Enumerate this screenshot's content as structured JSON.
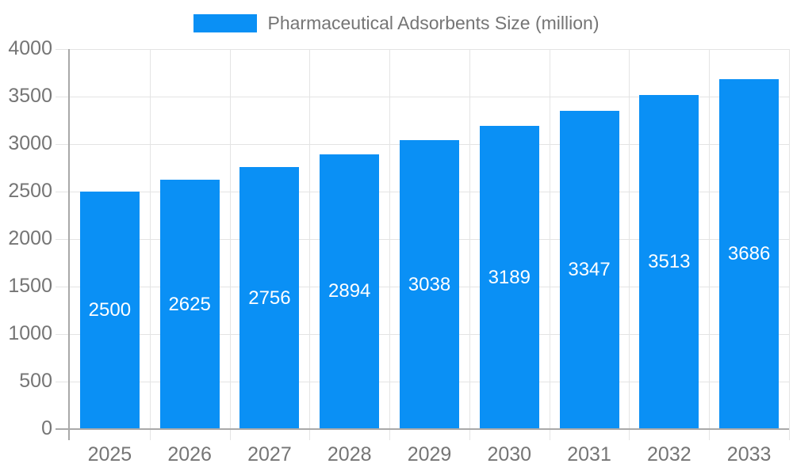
{
  "chart_data": {
    "type": "bar",
    "title": "Pharmaceutical Adsorbents Size (million)",
    "legend": {
      "label": "Pharmaceutical Adsorbents Size (million)",
      "position": "top-center"
    },
    "categories": [
      "2025",
      "2026",
      "2027",
      "2028",
      "2029",
      "2030",
      "2031",
      "2032",
      "2033"
    ],
    "series": [
      {
        "name": "Pharmaceutical Adsorbents Size (million)",
        "values": [
          2500,
          2625,
          2756,
          2894,
          3038,
          3189,
          3347,
          3513,
          3686
        ]
      }
    ],
    "xlabel": "",
    "ylabel": "",
    "ylim": [
      0,
      4000
    ],
    "yticks": [
      0,
      500,
      1000,
      1500,
      2000,
      2500,
      3000,
      3500,
      4000
    ],
    "grid": true,
    "bar_value_labels": "inside-center",
    "colors": {
      "bar": "#0a90f5",
      "bar_label": "#ffffff",
      "axis_text": "#757575",
      "legend_text": "#757575",
      "gridline": "#e4e4e4",
      "axis_line": "#a9a9a9",
      "background": "#ffffff"
    }
  }
}
